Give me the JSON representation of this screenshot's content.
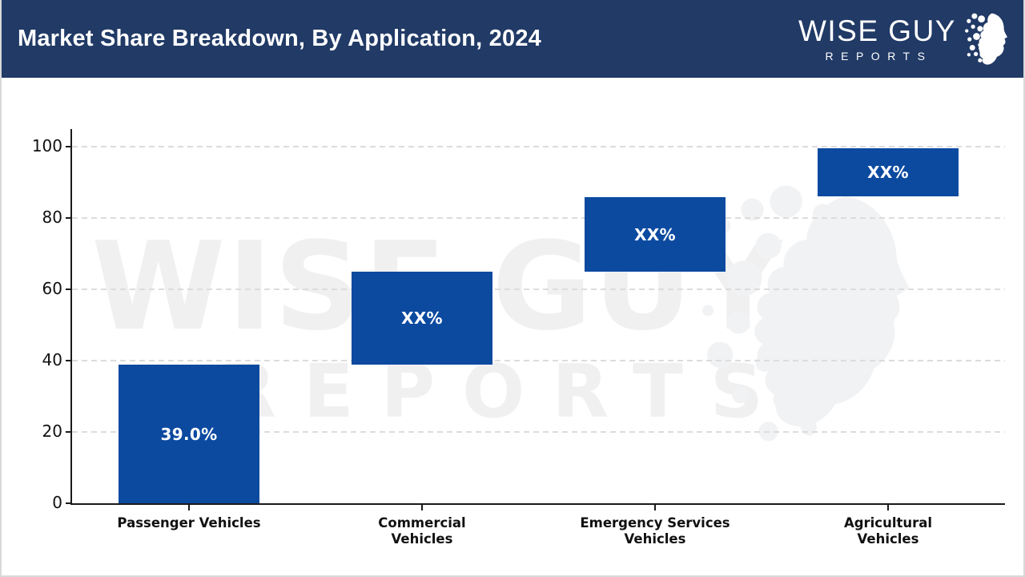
{
  "header": {
    "title": "Market Share Breakdown, By Application, 2024",
    "logo": {
      "line1": "WISE GUY",
      "line2": "REPORTS"
    },
    "background_color": "#213a66"
  },
  "watermark": {
    "line1": "WISE GUY",
    "line2": "REPORTS",
    "color": "#f1f0f1"
  },
  "chart_data": {
    "type": "bar",
    "subtype": "waterfall",
    "title": "Market Share Breakdown, By Application, 2024",
    "xlabel": "",
    "ylabel": "",
    "categories": [
      "Passenger Vehicles",
      "Commercial Vehicles",
      "Emergency Services Vehicles",
      "Agricultural Vehicles"
    ],
    "category_label_lines": [
      [
        "Passenger Vehicles"
      ],
      [
        "Commercial",
        "Vehicles"
      ],
      [
        "Emergency Services",
        "Vehicles"
      ],
      [
        "Agricultural",
        "Vehicles"
      ]
    ],
    "segments": [
      {
        "category": "Passenger Vehicles",
        "start": 0,
        "end": 39,
        "value_pct": 39.0,
        "label": "39.0%"
      },
      {
        "category": "Commercial Vehicles",
        "start": 39,
        "end": 65,
        "value_pct": 26.0,
        "label": "XX%"
      },
      {
        "category": "Emergency Services Vehicles",
        "start": 65,
        "end": 86,
        "value_pct": 21.0,
        "label": "XX%"
      },
      {
        "category": "Agricultural Vehicles",
        "start": 86,
        "end": 99.5,
        "value_pct": 13.5,
        "label": "XX%"
      }
    ],
    "values_estimated_from_pixels": true,
    "bar_labels": [
      "39.0%",
      "XX%",
      "XX%",
      "XX%"
    ],
    "yticks": [
      0,
      20,
      40,
      60,
      80,
      100
    ],
    "ylim": [
      0,
      105
    ],
    "grid": "horizontal-dashed",
    "legend": "none",
    "colors": {
      "bar": "#0c4aa0",
      "bar_label": "#ffffff",
      "grid": "#dcdcdc",
      "axis": "#1a1a1a",
      "tick_label": "#111111"
    }
  }
}
